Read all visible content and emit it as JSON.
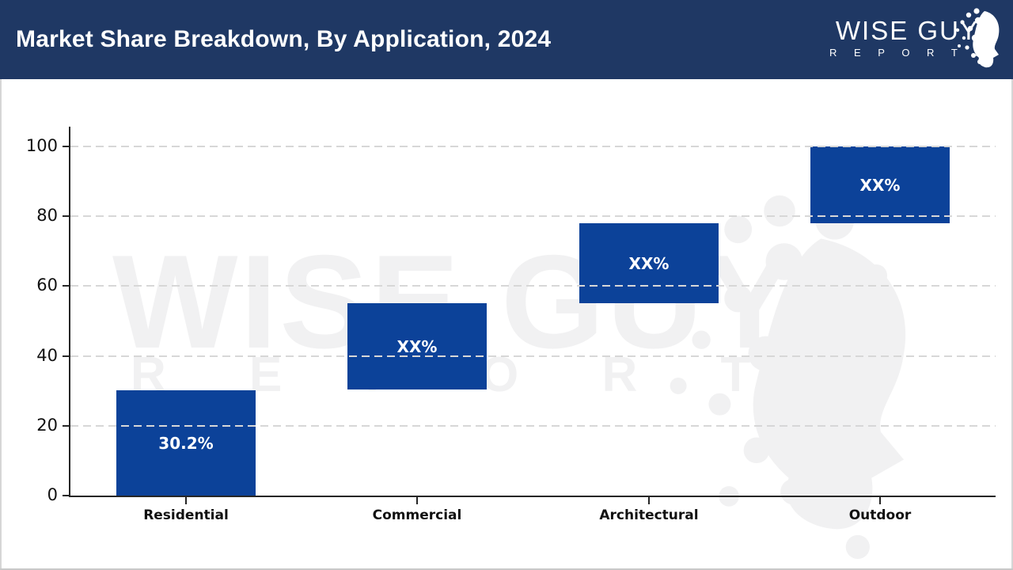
{
  "header": {
    "title": "Market Share Breakdown, By Application, 2024",
    "bg_color": "#1f3864",
    "logo": {
      "brand": "WISE GUY",
      "sub": "R E P O R T S"
    }
  },
  "watermark": {
    "brand": "WISE GUY",
    "sub": "R E P O R T S"
  },
  "chart_data": {
    "type": "bar",
    "variant": "waterfall",
    "title": "Market Share Breakdown, By Application, 2024",
    "xlabel": "",
    "ylabel": "",
    "categories": [
      "Residential",
      "Commercial",
      "Architectural",
      "Outdoor"
    ],
    "segments": [
      {
        "category": "Residential",
        "from": 0,
        "to": 30.2,
        "label": "30.2%"
      },
      {
        "category": "Commercial",
        "from": 30.2,
        "to": 55,
        "label": "XX%"
      },
      {
        "category": "Architectural",
        "from": 55,
        "to": 78,
        "label": "XX%"
      },
      {
        "category": "Outdoor",
        "from": 78,
        "to": 100,
        "label": "XX%"
      }
    ],
    "yticks": [
      0,
      20,
      40,
      60,
      80,
      100
    ],
    "ylim": [
      0,
      106
    ],
    "grid": {
      "horizontal": true,
      "style": "dashed",
      "drawn_over_bars": true
    },
    "legend": null,
    "colors": {
      "bar": "#0c4299",
      "bar_label": "#ffffff",
      "axis": "#262626",
      "tick_label": "#111111",
      "gridline": "#d7d7d7"
    }
  }
}
